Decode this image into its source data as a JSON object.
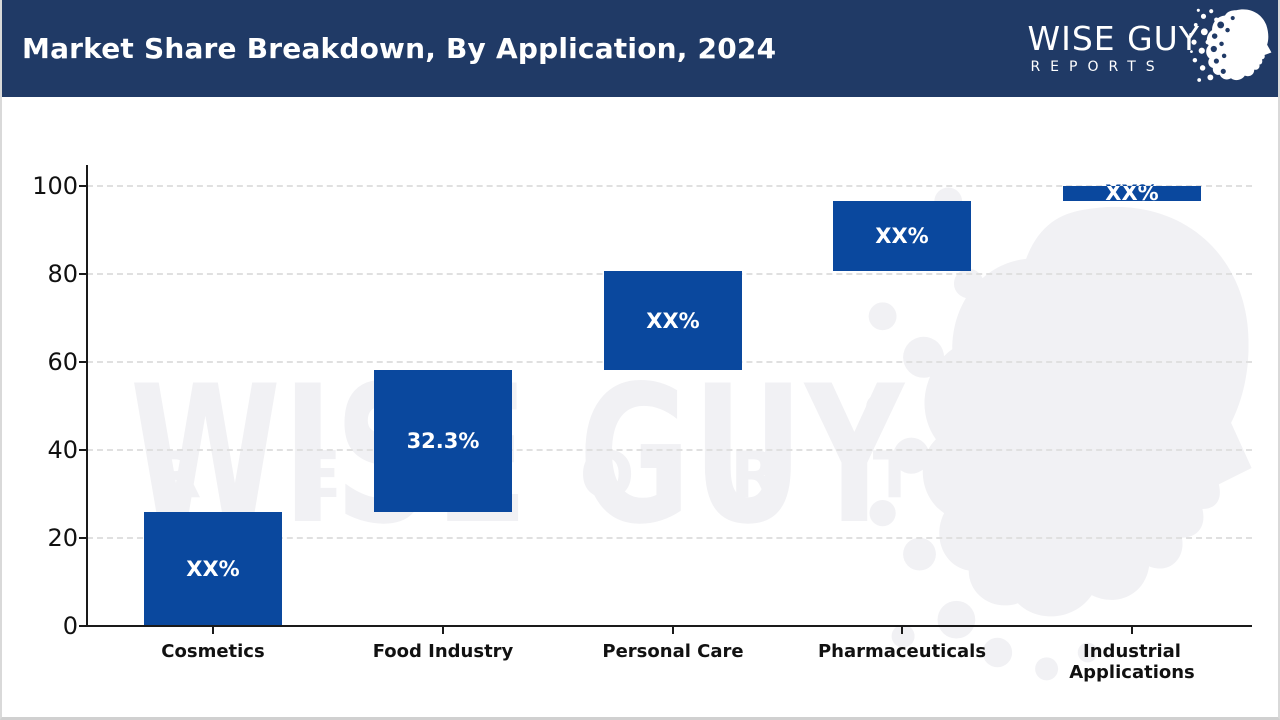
{
  "header": {
    "logo": {
      "line1": "WISE GUY",
      "line2": "REPORTS"
    }
  },
  "watermark": {
    "line1": "WISE GUY",
    "line2": "REPORTS"
  },
  "colors": {
    "header_bg": "#203A66",
    "bar": "#0A489E",
    "bar_label": "#ffffff",
    "axis": "#1a1a1a",
    "grid": "#e0e0e0",
    "watermark": "#f1f1f4",
    "frame_border": "#d9d9d9"
  },
  "chart_data": {
    "type": "bar",
    "subtype": "waterfall",
    "title": "Market Share Breakdown, By Application, 2024",
    "categories": [
      "Cosmetics",
      "Food Industry",
      "Personal Care",
      "Pharmaceuticals",
      "Industrial\nApplications"
    ],
    "segments": [
      {
        "category": "Cosmetics",
        "start": 0,
        "end": 25.8,
        "label": "XX%"
      },
      {
        "category": "Food Industry",
        "start": 25.8,
        "end": 58.1,
        "label": "32.3%"
      },
      {
        "category": "Personal Care",
        "start": 58.1,
        "end": 80.6,
        "label": "XX%"
      },
      {
        "category": "Pharmaceuticals",
        "start": 80.6,
        "end": 96.6,
        "label": "XX%"
      },
      {
        "category": "Industrial Applications",
        "start": 96.6,
        "end": 100,
        "label": "XX%"
      }
    ],
    "xlabel": "",
    "ylabel": "",
    "ylim": [
      0,
      105
    ],
    "yticks": [
      0,
      20,
      40,
      60,
      80,
      100
    ],
    "grid": {
      "horizontal": true,
      "style": "dashed"
    },
    "legend": "none",
    "bar_color": "#0A489E"
  }
}
